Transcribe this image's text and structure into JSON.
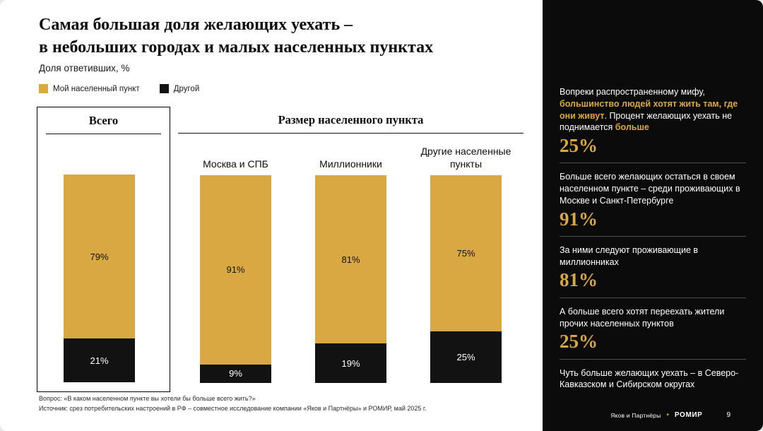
{
  "theme": {
    "gold": "#D9A843",
    "bar_black": "#121212",
    "sidebar_bg": "#0B0B0B",
    "text_dark": "#111111"
  },
  "header": {
    "title_line1": "Самая большая доля желающих уехать –",
    "title_line2": "в небольших городах и малых населенных пунктах",
    "subtitle": "Доля ответивших, %"
  },
  "chart_data": {
    "type": "bar",
    "stacked": true,
    "unit": "%",
    "ylim": [
      0,
      100
    ],
    "grid": false,
    "legend_position": "top-left",
    "section_total_title": "Всего",
    "section_size_title": "Размер населенного пункта",
    "categories": [
      "Всего",
      "Москва и СПБ",
      "Миллионники",
      "Другие населенные пункты"
    ],
    "series": [
      {
        "name": "Мой населенный пункт",
        "color": "#D9A843",
        "values": [
          79,
          91,
          81,
          75
        ]
      },
      {
        "name": "Другой",
        "color": "#121212",
        "values": [
          21,
          9,
          19,
          25
        ]
      }
    ]
  },
  "footnotes": {
    "question": "Вопрос: «В каком населенном пункте вы хотели бы больше всего жить?»",
    "source": "Источник: срез потребительских настроений в РФ – совместное исследование компании «Яков и Партнёры» и РОМИР, май 2025 г."
  },
  "sidebar": {
    "block1": {
      "t1": "Вопреки распространенному мифу, ",
      "t2": "большинство людей хотят жить там, где они живут",
      "t3": ". Процент желающих уехать не поднимается ",
      "t4": "больше",
      "value": "25%"
    },
    "block2": {
      "text": "Больше всего желающих остаться в своем населенном пункте – среди проживающих в Москве и Санкт-Петербурге",
      "value": "91%"
    },
    "block3": {
      "text": "За ними следуют проживающие в миллионниках",
      "value": "81%"
    },
    "block4": {
      "text": "А больше всего хотят переехать жители прочих населенных пунктов",
      "value": "25%"
    },
    "block5": {
      "text": "Чуть больше желающих уехать – в Северо-Кавказском и Сибирском округах"
    },
    "footer": {
      "brand_left": "Яков и Партнёры",
      "separator": "•",
      "brand_right": "РОМИР",
      "page": "9"
    }
  }
}
